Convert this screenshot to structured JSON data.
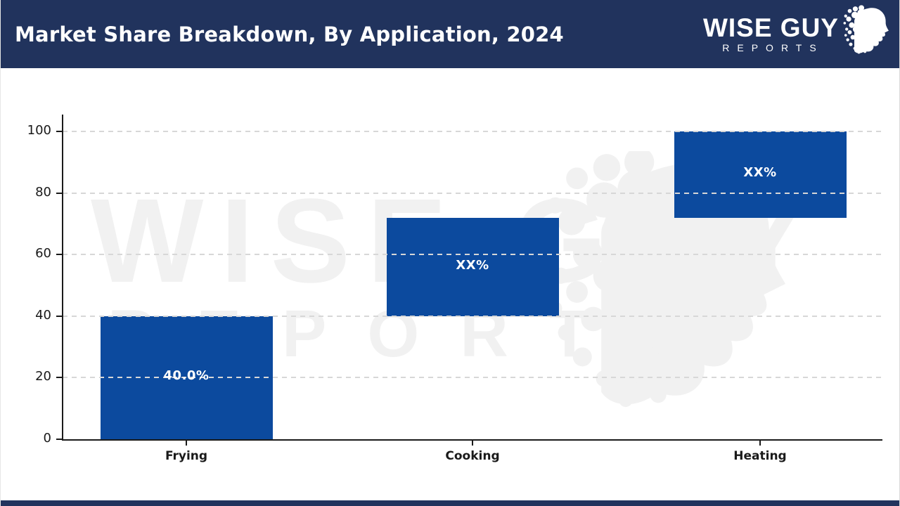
{
  "page": {
    "bg": "#ffffff",
    "accent": "#21335D"
  },
  "header": {
    "title": "Market Share Breakdown, By Application, 2024",
    "logo": {
      "brand_top": "WISE GUY",
      "brand_bottom": "REPORTS"
    }
  },
  "watermark": {
    "line1": "WISE GUY",
    "line2": "REPORTS"
  },
  "chart_data": {
    "type": "bar",
    "subtype": "waterfall",
    "title": "Market Share Breakdown, By Application, 2024",
    "categories": [
      "Frying",
      "Cooking",
      "Heating"
    ],
    "segments": [
      {
        "category": "Frying",
        "start": 0,
        "end": 40,
        "label": "40.0%"
      },
      {
        "category": "Cooking",
        "start": 40,
        "end": 72,
        "label": "XX%"
      },
      {
        "category": "Heating",
        "start": 72,
        "end": 100,
        "label": "XX%"
      }
    ],
    "yticks": [
      0,
      20,
      40,
      60,
      80,
      100
    ],
    "ylim": [
      0,
      105.5
    ],
    "xlabel": "",
    "ylabel": "",
    "grid": true,
    "grid_style": "dashed",
    "grid_on_top": true,
    "legend": "none",
    "bar_color": "#0C4A9E",
    "bar_label_color": "#ffffff",
    "axis_color": "#1a1a1a",
    "tick_label_color": "#1a1a1a"
  }
}
